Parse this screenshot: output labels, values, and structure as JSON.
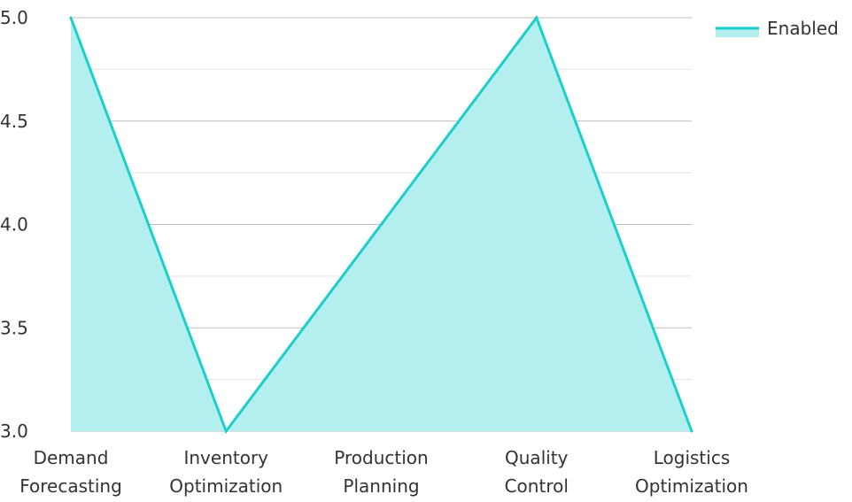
{
  "chart_data": {
    "type": "area",
    "categories": [
      [
        "Demand",
        "Forecasting"
      ],
      [
        "Inventory",
        "Optimization"
      ],
      [
        "Production",
        "Planning"
      ],
      [
        "Quality",
        "Control"
      ],
      [
        "Logistics",
        "Optimization"
      ]
    ],
    "series": [
      {
        "name": "Enabled",
        "values": [
          5.0,
          3.0,
          4.0,
          5.0,
          3.0
        ],
        "line_color": "#1ccfcb",
        "fill_color": "#b2efee"
      }
    ],
    "ylim": [
      3.0,
      5.0
    ],
    "y_ticks": [
      "3.0",
      "3.5",
      "4.0",
      "4.5",
      "5.0"
    ],
    "grid": true,
    "legend_position": "top-right"
  }
}
